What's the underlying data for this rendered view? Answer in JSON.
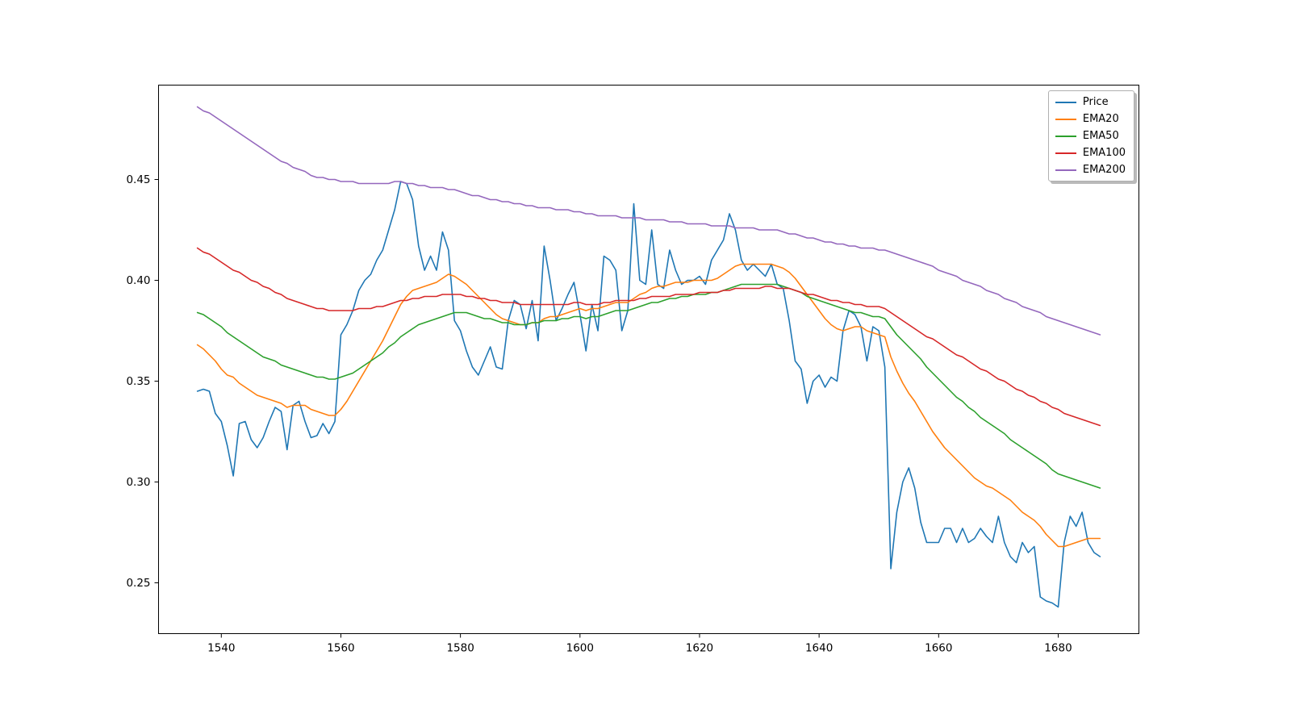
{
  "chart_data": {
    "type": "line",
    "title": "",
    "xlabel": "",
    "ylabel": "",
    "grid": false,
    "legend_position": "upper right",
    "xlim": [
      1529.5,
      1693.5
    ],
    "ylim": [
      0.2248,
      0.4968
    ],
    "x_ticks": [
      1540,
      1560,
      1580,
      1600,
      1620,
      1640,
      1660,
      1680
    ],
    "y_ticks": [
      0.25,
      0.3,
      0.35,
      0.4,
      0.45
    ],
    "y_tick_labels": [
      "0.25",
      "0.30",
      "0.35",
      "0.40",
      "0.45"
    ],
    "x_start": 1536,
    "x_step": 1,
    "axis_color": "#000000",
    "background_color": "#ffffff",
    "series": [
      {
        "name": "Price",
        "color": "#1f77b4",
        "values": [
          0.345,
          0.346,
          0.345,
          0.334,
          0.33,
          0.318,
          0.303,
          0.329,
          0.33,
          0.321,
          0.317,
          0.322,
          0.33,
          0.337,
          0.335,
          0.316,
          0.338,
          0.34,
          0.33,
          0.322,
          0.323,
          0.329,
          0.324,
          0.33,
          0.373,
          0.378,
          0.385,
          0.395,
          0.4,
          0.403,
          0.41,
          0.415,
          0.425,
          0.435,
          0.449,
          0.448,
          0.44,
          0.417,
          0.405,
          0.412,
          0.405,
          0.424,
          0.415,
          0.38,
          0.375,
          0.365,
          0.357,
          0.353,
          0.36,
          0.367,
          0.357,
          0.356,
          0.38,
          0.39,
          0.388,
          0.376,
          0.39,
          0.37,
          0.417,
          0.4,
          0.38,
          0.386,
          0.393,
          0.399,
          0.383,
          0.365,
          0.388,
          0.375,
          0.412,
          0.41,
          0.405,
          0.375,
          0.385,
          0.438,
          0.4,
          0.398,
          0.425,
          0.398,
          0.396,
          0.415,
          0.405,
          0.398,
          0.4,
          0.4,
          0.402,
          0.398,
          0.41,
          0.415,
          0.42,
          0.433,
          0.425,
          0.41,
          0.405,
          0.408,
          0.405,
          0.402,
          0.408,
          0.398,
          0.396,
          0.38,
          0.36,
          0.356,
          0.339,
          0.35,
          0.353,
          0.347,
          0.352,
          0.35,
          0.375,
          0.385,
          0.383,
          0.377,
          0.36,
          0.377,
          0.375,
          0.357,
          0.257,
          0.285,
          0.3,
          0.307,
          0.297,
          0.28,
          0.27,
          0.27,
          0.27,
          0.277,
          0.277,
          0.27,
          0.277,
          0.27,
          0.272,
          0.277,
          0.273,
          0.27,
          0.283,
          0.27,
          0.263,
          0.26,
          0.27,
          0.265,
          0.268,
          0.243,
          0.241,
          0.24,
          0.238,
          0.27,
          0.283,
          0.278,
          0.285,
          0.27,
          0.265,
          0.263
        ]
      },
      {
        "name": "EMA20",
        "color": "#ff7f0e",
        "values": [
          0.368,
          0.366,
          0.363,
          0.36,
          0.356,
          0.353,
          0.352,
          0.349,
          0.347,
          0.345,
          0.343,
          0.342,
          0.341,
          0.34,
          0.339,
          0.337,
          0.338,
          0.338,
          0.338,
          0.336,
          0.335,
          0.334,
          0.333,
          0.333,
          0.336,
          0.34,
          0.345,
          0.35,
          0.355,
          0.36,
          0.365,
          0.37,
          0.376,
          0.382,
          0.388,
          0.392,
          0.395,
          0.396,
          0.397,
          0.398,
          0.399,
          0.401,
          0.403,
          0.402,
          0.4,
          0.398,
          0.395,
          0.392,
          0.389,
          0.386,
          0.383,
          0.381,
          0.38,
          0.379,
          0.378,
          0.378,
          0.379,
          0.379,
          0.381,
          0.382,
          0.382,
          0.383,
          0.384,
          0.385,
          0.386,
          0.385,
          0.386,
          0.386,
          0.387,
          0.388,
          0.389,
          0.389,
          0.389,
          0.391,
          0.393,
          0.394,
          0.396,
          0.397,
          0.397,
          0.398,
          0.399,
          0.399,
          0.399,
          0.4,
          0.4,
          0.4,
          0.4,
          0.401,
          0.403,
          0.405,
          0.407,
          0.408,
          0.408,
          0.408,
          0.408,
          0.408,
          0.408,
          0.407,
          0.406,
          0.404,
          0.401,
          0.397,
          0.393,
          0.389,
          0.385,
          0.381,
          0.378,
          0.376,
          0.375,
          0.376,
          0.377,
          0.377,
          0.375,
          0.374,
          0.373,
          0.372,
          0.362,
          0.355,
          0.349,
          0.344,
          0.34,
          0.335,
          0.33,
          0.325,
          0.321,
          0.317,
          0.314,
          0.311,
          0.308,
          0.305,
          0.302,
          0.3,
          0.298,
          0.297,
          0.295,
          0.293,
          0.291,
          0.288,
          0.285,
          0.283,
          0.281,
          0.278,
          0.274,
          0.271,
          0.268,
          0.268,
          0.269,
          0.27,
          0.271,
          0.272,
          0.272,
          0.272
        ]
      },
      {
        "name": "EMA50",
        "color": "#2ca02c",
        "values": [
          0.384,
          0.383,
          0.381,
          0.379,
          0.377,
          0.374,
          0.372,
          0.37,
          0.368,
          0.366,
          0.364,
          0.362,
          0.361,
          0.36,
          0.358,
          0.357,
          0.356,
          0.355,
          0.354,
          0.353,
          0.352,
          0.352,
          0.351,
          0.351,
          0.352,
          0.353,
          0.354,
          0.356,
          0.358,
          0.36,
          0.362,
          0.364,
          0.367,
          0.369,
          0.372,
          0.374,
          0.376,
          0.378,
          0.379,
          0.38,
          0.381,
          0.382,
          0.383,
          0.384,
          0.384,
          0.384,
          0.383,
          0.382,
          0.381,
          0.381,
          0.38,
          0.379,
          0.379,
          0.378,
          0.378,
          0.378,
          0.379,
          0.379,
          0.38,
          0.38,
          0.38,
          0.381,
          0.381,
          0.382,
          0.382,
          0.381,
          0.382,
          0.382,
          0.383,
          0.384,
          0.385,
          0.385,
          0.385,
          0.386,
          0.387,
          0.388,
          0.389,
          0.389,
          0.39,
          0.391,
          0.391,
          0.392,
          0.392,
          0.393,
          0.393,
          0.393,
          0.394,
          0.394,
          0.395,
          0.396,
          0.397,
          0.398,
          0.398,
          0.398,
          0.398,
          0.398,
          0.398,
          0.398,
          0.397,
          0.396,
          0.395,
          0.394,
          0.392,
          0.391,
          0.39,
          0.389,
          0.388,
          0.387,
          0.386,
          0.385,
          0.384,
          0.384,
          0.383,
          0.382,
          0.382,
          0.381,
          0.377,
          0.373,
          0.37,
          0.367,
          0.364,
          0.361,
          0.357,
          0.354,
          0.351,
          0.348,
          0.345,
          0.342,
          0.34,
          0.337,
          0.335,
          0.332,
          0.33,
          0.328,
          0.326,
          0.324,
          0.321,
          0.319,
          0.317,
          0.315,
          0.313,
          0.311,
          0.309,
          0.306,
          0.304,
          0.303,
          0.302,
          0.301,
          0.3,
          0.299,
          0.298,
          0.297
        ]
      },
      {
        "name": "EMA100",
        "color": "#d62728",
        "values": [
          0.416,
          0.414,
          0.413,
          0.411,
          0.409,
          0.407,
          0.405,
          0.404,
          0.402,
          0.4,
          0.399,
          0.397,
          0.396,
          0.394,
          0.393,
          0.391,
          0.39,
          0.389,
          0.388,
          0.387,
          0.386,
          0.386,
          0.385,
          0.385,
          0.385,
          0.385,
          0.385,
          0.386,
          0.386,
          0.386,
          0.387,
          0.387,
          0.388,
          0.389,
          0.39,
          0.39,
          0.391,
          0.391,
          0.392,
          0.392,
          0.392,
          0.393,
          0.393,
          0.393,
          0.393,
          0.392,
          0.392,
          0.391,
          0.391,
          0.39,
          0.39,
          0.389,
          0.389,
          0.389,
          0.388,
          0.388,
          0.388,
          0.388,
          0.388,
          0.388,
          0.388,
          0.388,
          0.388,
          0.389,
          0.389,
          0.388,
          0.388,
          0.388,
          0.389,
          0.389,
          0.39,
          0.39,
          0.39,
          0.39,
          0.391,
          0.391,
          0.392,
          0.392,
          0.392,
          0.392,
          0.393,
          0.393,
          0.393,
          0.393,
          0.394,
          0.394,
          0.394,
          0.394,
          0.395,
          0.395,
          0.396,
          0.396,
          0.396,
          0.396,
          0.396,
          0.397,
          0.397,
          0.396,
          0.396,
          0.396,
          0.395,
          0.394,
          0.393,
          0.393,
          0.392,
          0.391,
          0.39,
          0.39,
          0.389,
          0.389,
          0.388,
          0.388,
          0.387,
          0.387,
          0.387,
          0.386,
          0.384,
          0.382,
          0.38,
          0.378,
          0.376,
          0.374,
          0.372,
          0.371,
          0.369,
          0.367,
          0.365,
          0.363,
          0.362,
          0.36,
          0.358,
          0.356,
          0.355,
          0.353,
          0.351,
          0.35,
          0.348,
          0.346,
          0.345,
          0.343,
          0.342,
          0.34,
          0.339,
          0.337,
          0.336,
          0.334,
          0.333,
          0.332,
          0.331,
          0.33,
          0.329,
          0.328
        ]
      },
      {
        "name": "EMA200",
        "color": "#9467bd",
        "values": [
          0.486,
          0.484,
          0.483,
          0.481,
          0.479,
          0.477,
          0.475,
          0.473,
          0.471,
          0.469,
          0.467,
          0.465,
          0.463,
          0.461,
          0.459,
          0.458,
          0.456,
          0.455,
          0.454,
          0.452,
          0.451,
          0.451,
          0.45,
          0.45,
          0.449,
          0.449,
          0.449,
          0.448,
          0.448,
          0.448,
          0.448,
          0.448,
          0.448,
          0.449,
          0.449,
          0.448,
          0.448,
          0.447,
          0.447,
          0.446,
          0.446,
          0.446,
          0.445,
          0.445,
          0.444,
          0.443,
          0.442,
          0.442,
          0.441,
          0.44,
          0.44,
          0.439,
          0.439,
          0.438,
          0.438,
          0.437,
          0.437,
          0.436,
          0.436,
          0.436,
          0.435,
          0.435,
          0.435,
          0.434,
          0.434,
          0.433,
          0.433,
          0.432,
          0.432,
          0.432,
          0.432,
          0.431,
          0.431,
          0.431,
          0.431,
          0.43,
          0.43,
          0.43,
          0.43,
          0.429,
          0.429,
          0.429,
          0.428,
          0.428,
          0.428,
          0.428,
          0.427,
          0.427,
          0.427,
          0.427,
          0.426,
          0.426,
          0.426,
          0.426,
          0.425,
          0.425,
          0.425,
          0.425,
          0.424,
          0.423,
          0.423,
          0.422,
          0.421,
          0.421,
          0.42,
          0.419,
          0.419,
          0.418,
          0.418,
          0.417,
          0.417,
          0.416,
          0.416,
          0.416,
          0.415,
          0.415,
          0.414,
          0.413,
          0.412,
          0.411,
          0.41,
          0.409,
          0.408,
          0.407,
          0.405,
          0.404,
          0.403,
          0.402,
          0.4,
          0.399,
          0.398,
          0.397,
          0.395,
          0.394,
          0.393,
          0.391,
          0.39,
          0.389,
          0.387,
          0.386,
          0.385,
          0.384,
          0.382,
          0.381,
          0.38,
          0.379,
          0.378,
          0.377,
          0.376,
          0.375,
          0.374,
          0.373
        ]
      }
    ]
  },
  "legend": {
    "items": [
      "Price",
      "EMA20",
      "EMA50",
      "EMA100",
      "EMA200"
    ]
  }
}
